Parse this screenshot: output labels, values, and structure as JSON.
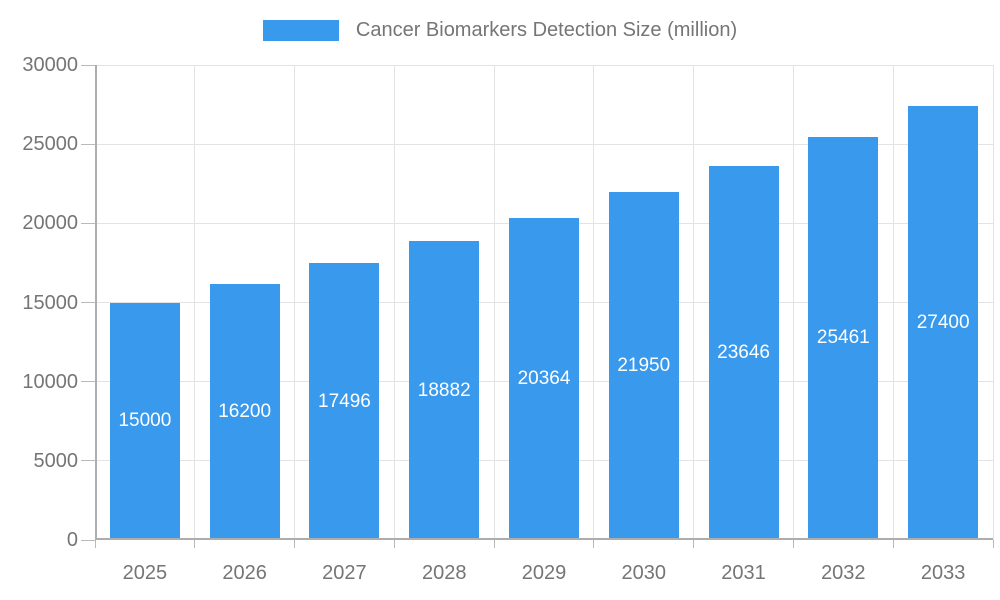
{
  "chart_data": {
    "type": "bar",
    "title": "Cancer Biomarkers Detection Size (million)",
    "categories": [
      "2025",
      "2026",
      "2027",
      "2028",
      "2029",
      "2030",
      "2031",
      "2032",
      "2033"
    ],
    "series": [
      {
        "name": "Cancer Biomarkers Detection Size (million)",
        "values": [
          15000,
          16200,
          17496,
          18882,
          20364,
          21950,
          23646,
          25461,
          27400
        ]
      }
    ],
    "xlabel": "",
    "ylabel": "",
    "ylim": [
      0,
      30000
    ],
    "yticks": [
      0,
      5000,
      10000,
      15000,
      20000,
      25000,
      30000
    ],
    "grid": true,
    "legend_position": "top-center",
    "data_labels_position": "inside-center",
    "colors": {
      "bar": "#3999ec",
      "bar_label": "#ffffff",
      "axis_text": "#757575",
      "grid_line": "#e3e3e3",
      "axis_line": "#adadad",
      "tick": "#b9b9b9",
      "background": "#ffffff"
    }
  }
}
